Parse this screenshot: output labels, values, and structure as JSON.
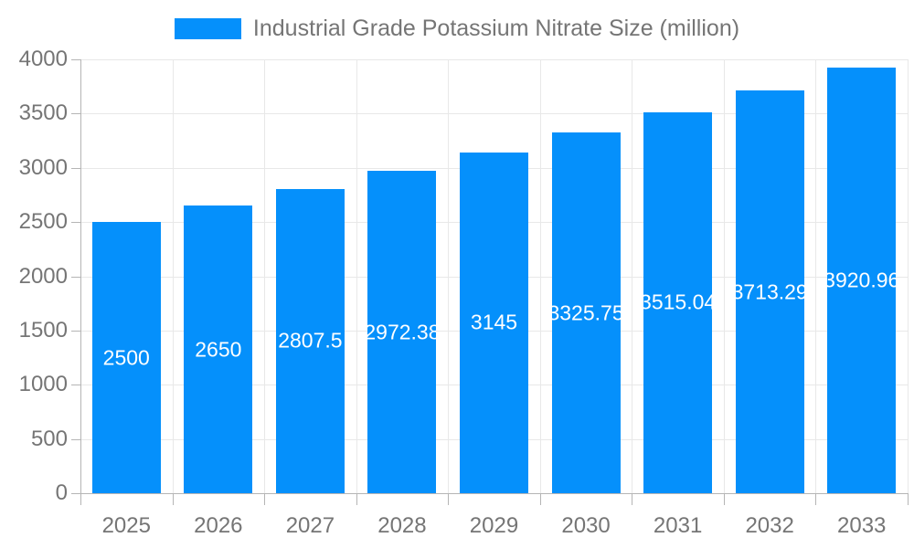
{
  "chart_data": {
    "type": "bar",
    "title": "Industrial Grade Potassium Nitrate Size (million)",
    "legend_position": "top",
    "categories": [
      "2025",
      "2026",
      "2027",
      "2028",
      "2029",
      "2030",
      "2031",
      "2032",
      "2033"
    ],
    "values": [
      2500,
      2650,
      2807.5,
      2972.38,
      3145,
      3325.75,
      3515.04,
      3713.29,
      3920.96
    ],
    "bar_labels": [
      "2500",
      "2650",
      "2807.5",
      "2972.38",
      "3145",
      "3325.75",
      "3515.04",
      "3713.29",
      "3920.96"
    ],
    "ylim": [
      0,
      4000
    ],
    "yticks": [
      0,
      500,
      1000,
      1500,
      2000,
      2500,
      3000,
      3500,
      4000
    ],
    "grid": {
      "horizontal": true,
      "vertical": true
    },
    "colors": {
      "bar": "#0590FB",
      "grid": "#E8E8E8",
      "axis": "#B5B5B5",
      "text": "#757575",
      "bar_label": "#FFFFFF",
      "background": "#FFFFFF"
    }
  }
}
